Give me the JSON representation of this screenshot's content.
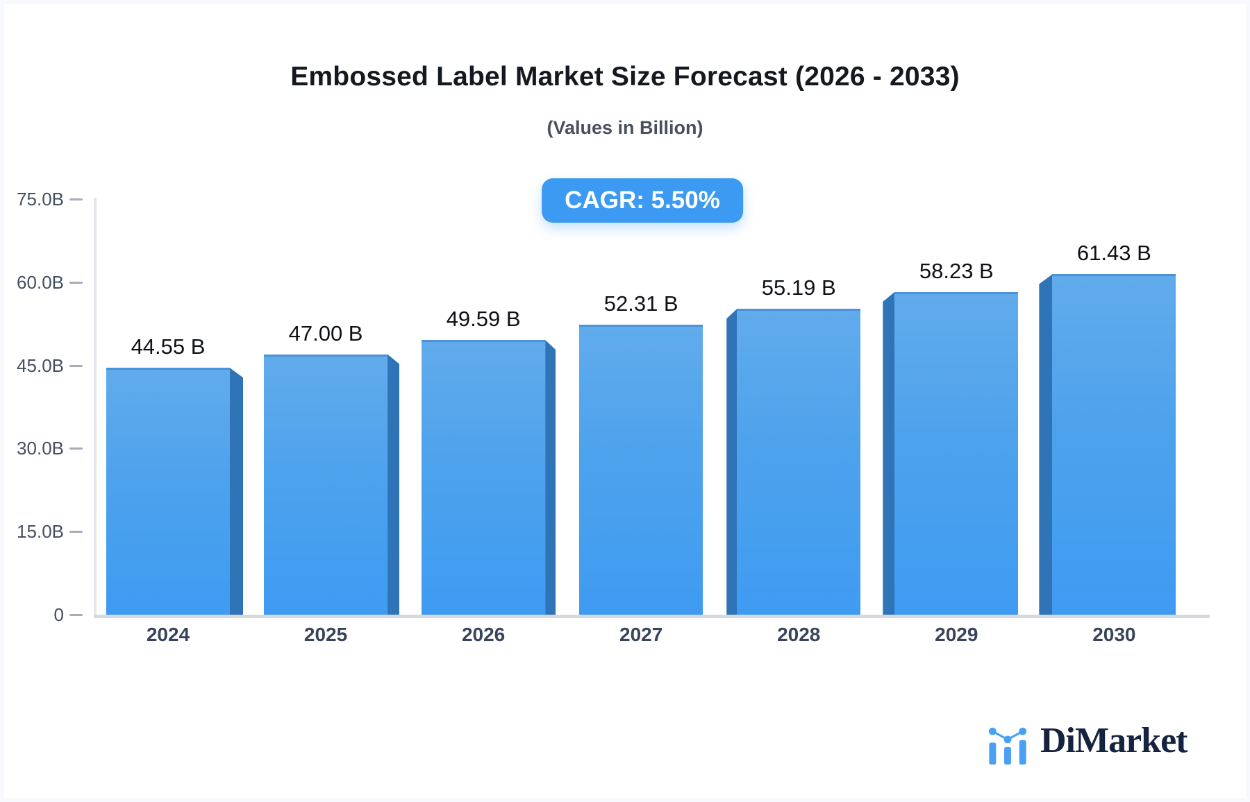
{
  "header": {
    "title": "Embossed Label Market Size Forecast (2026 - 2033)",
    "subtitle": "(Values in Billion)",
    "cagr_badge": "CAGR: 5.50%"
  },
  "chart_data": {
    "type": "bar",
    "style": "3d-perspective-bars",
    "title": "Embossed Label Market Size Forecast (2026 - 2033)",
    "subtitle": "(Values in Billion)",
    "categories": [
      "2024",
      "2025",
      "2026",
      "2027",
      "2028",
      "2029",
      "2030"
    ],
    "values": [
      44.55,
      47.0,
      49.59,
      52.31,
      55.19,
      58.23,
      61.43
    ],
    "values_display": [
      "44.55 B",
      "47.00 B",
      "49.59 B",
      "52.31 B",
      "55.19 B",
      "58.23 B",
      "61.43 B"
    ],
    "xlabel": "",
    "ylabel": "",
    "ylim": [
      0,
      75
    ],
    "yticks": [
      0,
      15,
      30,
      45,
      60,
      75
    ],
    "ytick_labels": [
      "0",
      "15.0B",
      "30.0B",
      "45.0B",
      "60.0B",
      "75.0B"
    ],
    "grid": false,
    "legend": false,
    "bar_color_top": "#61ABEC",
    "bar_color_bottom": "#3F9BF2",
    "bar_side_color": "#2E74B6",
    "bar_top_edge_color": "#4B92D6"
  },
  "watermark": {
    "brand": "DiMarket",
    "icon": "bar-chart-logo-icon",
    "icon_color": "#4AA0F3",
    "text_color": "#16233E"
  },
  "colors": {
    "badge_blue": "#3D9AF2",
    "axis_line": "#E3E6EC",
    "baseline": "#D6DADF",
    "tick_mark": "#A6ADB7",
    "tick_text": "#444F61",
    "value_text": "#0E1116",
    "category_text": "#39435A",
    "background": "#FFFFFF",
    "page_edge": "#F7F9FC"
  }
}
